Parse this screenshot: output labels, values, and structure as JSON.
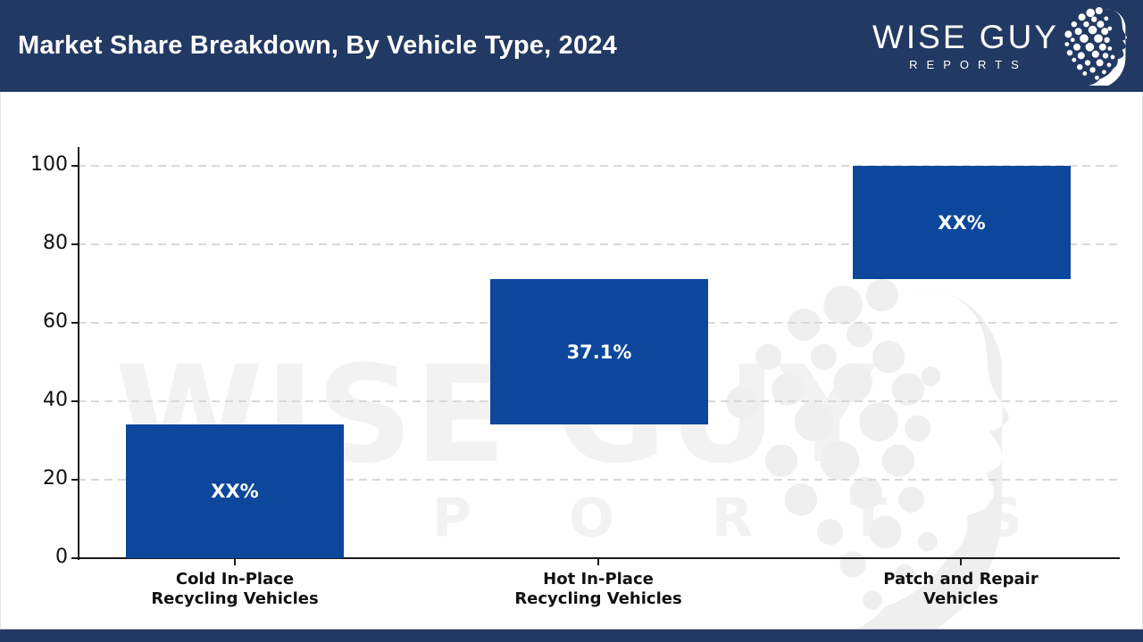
{
  "header": {
    "title": "Market Share Breakdown, By Vehicle Type, 2024",
    "logo": {
      "line1": "WISE GUY",
      "line2": "REPORTS"
    }
  },
  "watermark": {
    "line1": "WISE GUY",
    "line2": "R E P O R T S"
  },
  "chart_data": {
    "type": "bar",
    "subtype": "floating-segment-waterfall",
    "title": "Market Share Breakdown, By Vehicle Type, 2024",
    "categories": [
      "Cold In-Place\nRecycling Vehicles",
      "Hot In-Place\nRecycling Vehicles",
      "Patch and Repair\nVehicles"
    ],
    "series": [
      {
        "name": "Cold In-Place Recycling Vehicles",
        "base": 0,
        "top": 34,
        "value": 34,
        "label": "XX%"
      },
      {
        "name": "Hot In-Place Recycling Vehicles",
        "base": 34,
        "top": 71.1,
        "value": 37.1,
        "label": "37.1%"
      },
      {
        "name": "Patch and Repair Vehicles",
        "base": 71.1,
        "top": 100,
        "value": 28.9,
        "label": "XX%"
      }
    ],
    "xlabel": "",
    "ylabel": "",
    "ylim": [
      0,
      100
    ],
    "yticks": [
      0,
      20,
      40,
      60,
      80,
      100
    ],
    "grid": "dashed-horizontal",
    "legend": "none"
  },
  "colors": {
    "header_bg": "#223963",
    "footer_bg": "#223963",
    "bar": "#0C479C",
    "bar_label": "#FFFFFF",
    "grid": "#D9D9D9",
    "axis": "#1A1A1A",
    "watermark": "#F2F2F2",
    "chart_bg": "#FFFFFF"
  }
}
